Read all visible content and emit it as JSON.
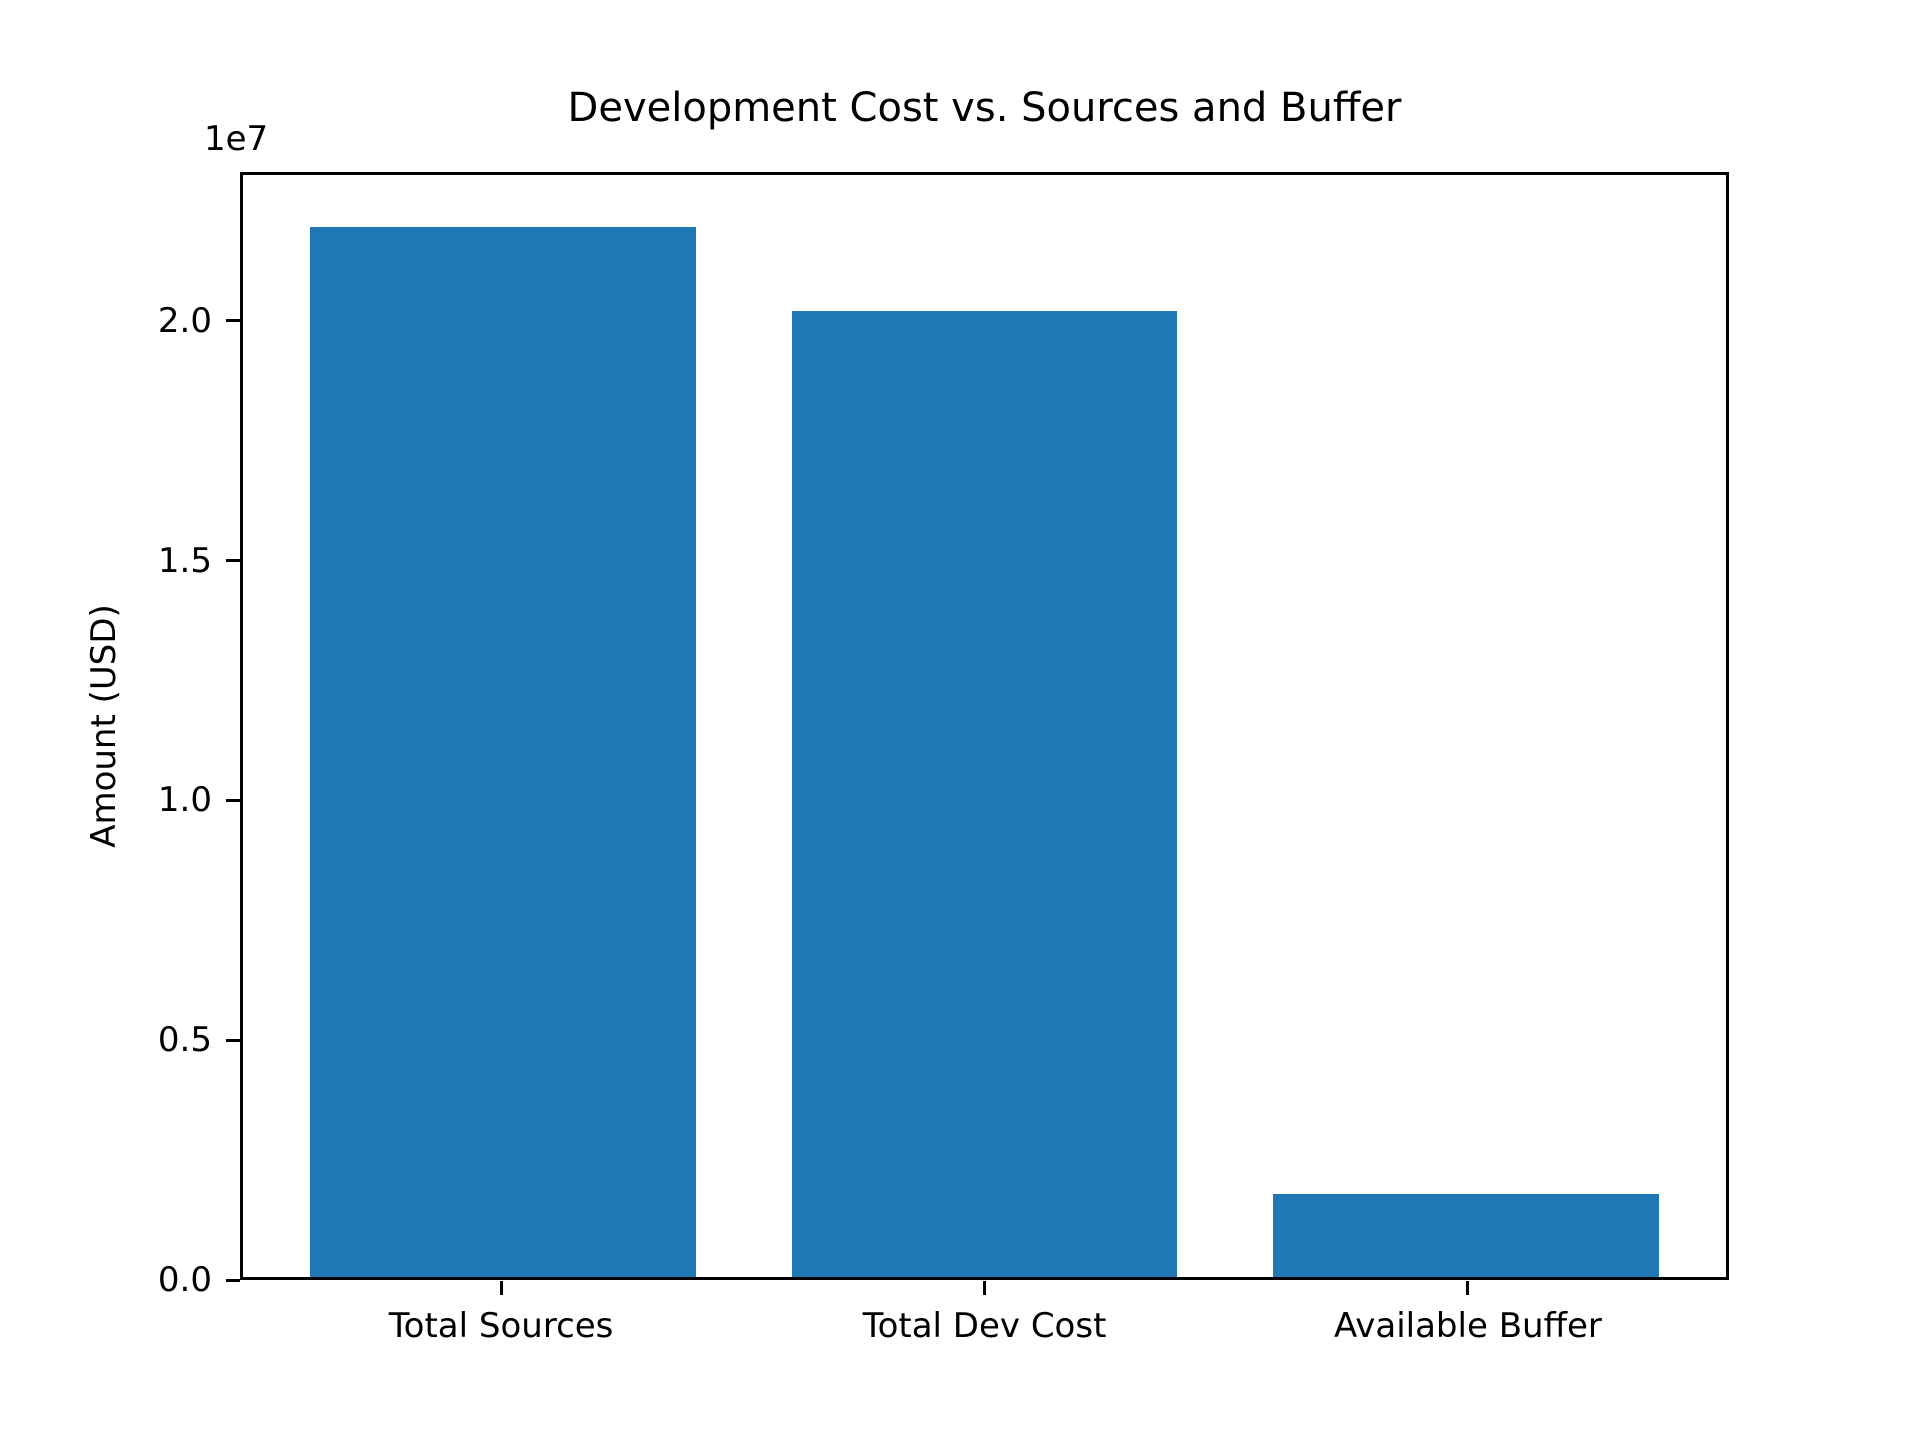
{
  "chart_data": {
    "type": "bar",
    "title": "Development Cost vs. Sources and Buffer",
    "xlabel": "",
    "ylabel": "Amount (USD)",
    "y_offset_label": "1e7",
    "categories": [
      "Total Sources",
      "Total Dev Cost",
      "Available Buffer"
    ],
    "values": [
      22000000,
      20250000,
      1750000
    ],
    "bar_color": "#1f77b4",
    "bar_width": 0.8,
    "xlim": [
      -0.54,
      2.54
    ],
    "ylim": [
      0,
      23100000
    ],
    "y_ticks": [
      0,
      5000000,
      10000000,
      15000000,
      20000000
    ],
    "y_tick_labels": [
      "0.0",
      "0.5",
      "1.0",
      "1.5",
      "2.0"
    ],
    "grid": false,
    "legend": null
  }
}
